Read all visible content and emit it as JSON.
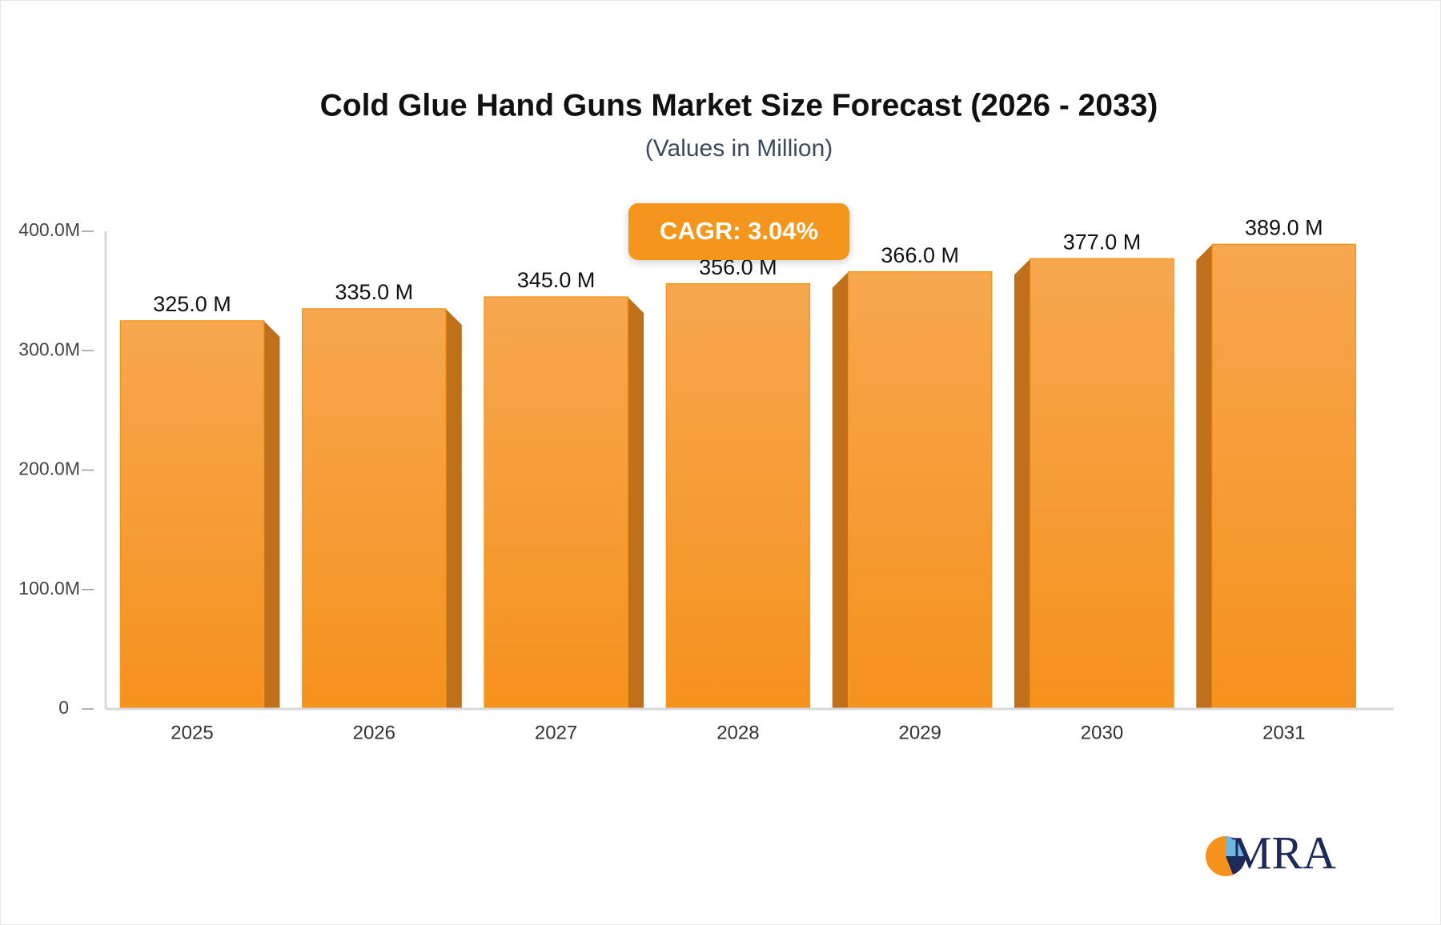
{
  "chart_data": {
    "type": "bar",
    "title": "Cold Glue Hand Guns Market Size Forecast (2026 - 2033)",
    "subtitle": "(Values in Million)",
    "annotation": "CAGR: 3.04%",
    "logo": "MRA",
    "categories": [
      "2025",
      "2026",
      "2027",
      "2028",
      "2029",
      "2030",
      "2031"
    ],
    "values": [
      325,
      335,
      345,
      356,
      366,
      377,
      389
    ],
    "value_labels": [
      "325.0 M",
      "335.0 M",
      "345.0 M",
      "356.0 M",
      "366.0 M",
      "377.0 M",
      "389.0 M"
    ],
    "color": "#f5961f",
    "ylim": [
      0,
      400
    ],
    "yticks": [
      0,
      {
        "value": 100,
        "label": "100.0M"
      },
      {
        "value": 200,
        "label": "200.0M"
      },
      {
        "value": 300,
        "label": "300.0M"
      },
      {
        "value": 400,
        "label": "400.0M"
      }
    ],
    "grid": false
  }
}
